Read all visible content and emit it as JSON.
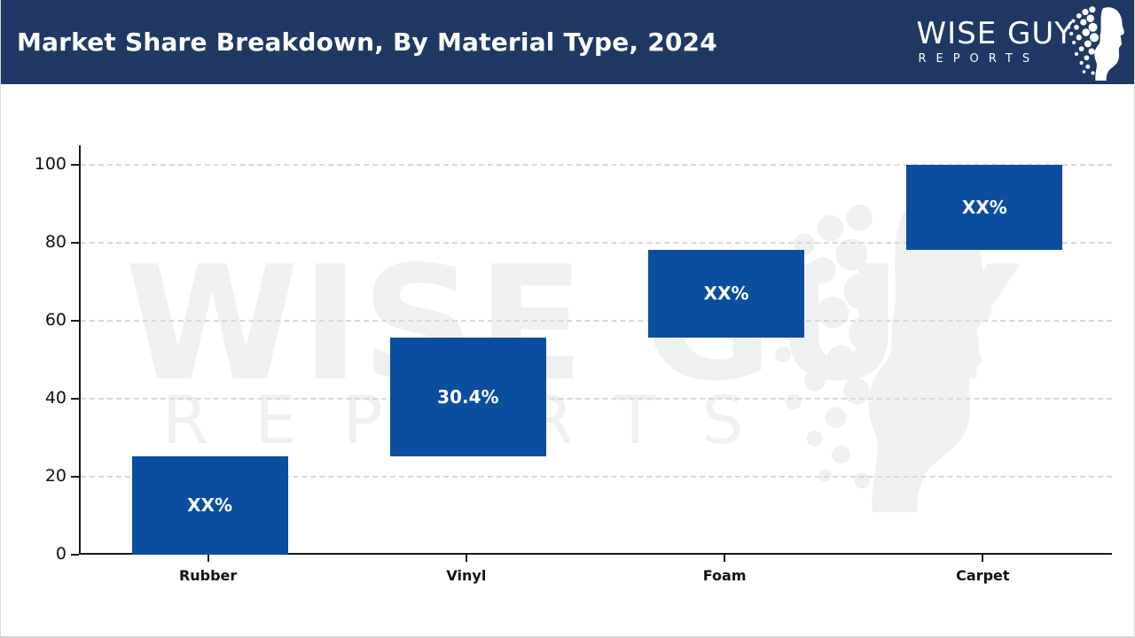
{
  "header": {
    "title": "Market Share Breakdown, By Material Type, 2024",
    "logo": {
      "line1": "WISE GUY",
      "line2": "REPORTS"
    }
  },
  "watermark": {
    "line1": "WISE GUY",
    "line2": "REPORTS"
  },
  "chart_data": {
    "type": "bar",
    "subtype": "waterfall",
    "title": "Market Share Breakdown, By Material Type, 2024",
    "categories": [
      "Rubber",
      "Vinyl",
      "Foam",
      "Carpet"
    ],
    "segments": [
      {
        "category": "Rubber",
        "start": 0,
        "end": 25.3,
        "label": "XX%"
      },
      {
        "category": "Vinyl",
        "start": 25.3,
        "end": 55.7,
        "label": "30.4%"
      },
      {
        "category": "Foam",
        "start": 55.7,
        "end": 78.2,
        "label": "XX%"
      },
      {
        "category": "Carpet",
        "start": 78.2,
        "end": 100,
        "label": "XX%"
      }
    ],
    "xlabel": "",
    "ylabel": "",
    "ylim": [
      0,
      105
    ],
    "yticks": [
      0,
      20,
      40,
      60,
      80,
      100
    ],
    "grid": "horizontal-dashed",
    "legend": "none",
    "colors": {
      "bar": "#0b4ea0",
      "bar_label": "#ffffff",
      "header_bg": "#1f3864",
      "header_text": "#ffffff",
      "gridline": "#d9d9d9",
      "axis": "#1a1a1a",
      "watermark": "#f0f0f2"
    }
  }
}
